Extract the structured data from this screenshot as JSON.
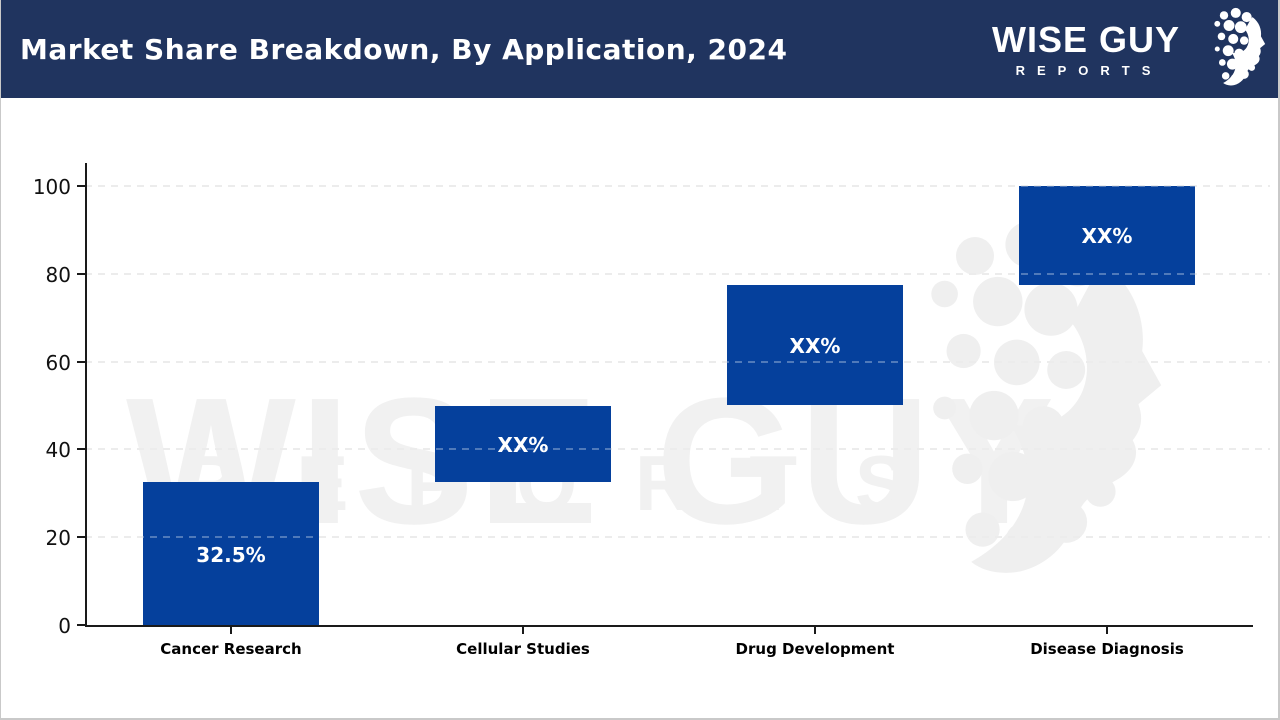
{
  "header": {
    "title": "Market Share Breakdown, By Application, 2024",
    "bg_color": "#20345f",
    "logo": {
      "line1": "WISE GUY",
      "line2": "REPORTS",
      "face_icon": "dotted-head-profile"
    }
  },
  "watermark": {
    "line1": "WISE GUY",
    "line2": "REPORTS",
    "face_icon": "dotted-head-profile"
  },
  "chart_data": {
    "type": "bar",
    "variant": "waterfall",
    "title": "Market Share Breakdown, By Application, 2024",
    "categories": [
      "Cancer Research",
      "Cellular Studies",
      "Drug Development",
      "Disease Diagnosis"
    ],
    "series": [
      {
        "name": "Market Share",
        "segments": [
          {
            "category": "Cancer Research",
            "start": 0,
            "end": 32.5,
            "label": "32.5%"
          },
          {
            "category": "Cellular Studies",
            "start": 32.5,
            "end": 50,
            "label": "XX%"
          },
          {
            "category": "Drug Development",
            "start": 50,
            "end": 77.5,
            "label": "XX%"
          },
          {
            "category": "Disease Diagnosis",
            "start": 77.5,
            "end": 100,
            "label": "XX%"
          }
        ]
      }
    ],
    "xlabel": "",
    "ylabel": "",
    "ylim": [
      0,
      100
    ],
    "yticks": [
      0,
      20,
      40,
      60,
      80,
      100
    ],
    "grid": true,
    "grid_style": "dashed",
    "legend": "none",
    "bar_color": "#05409c",
    "label_color": "#ffffff"
  }
}
